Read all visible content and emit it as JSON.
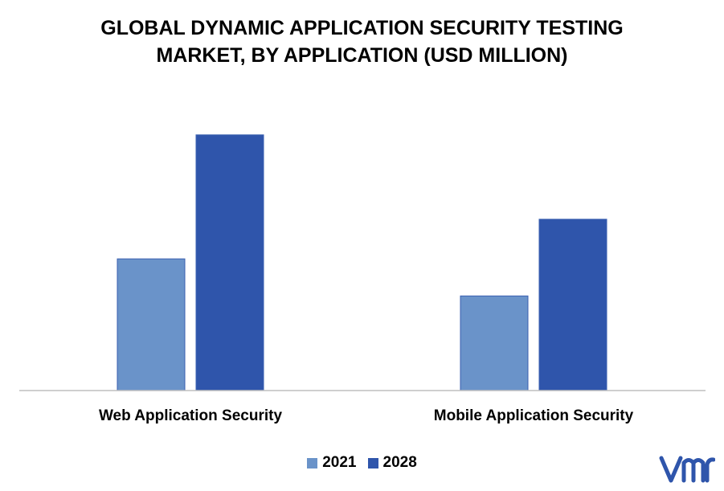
{
  "chart_data": {
    "type": "bar",
    "title_lines": [
      "GLOBAL DYNAMIC APPLICATION SECURITY TESTING",
      "MARKET, BY APPLICATION (USD MILLION)"
    ],
    "categories": [
      "Web Application Security",
      "Mobile Application Security"
    ],
    "series": [
      {
        "name": "2021",
        "values": [
          51.5,
          37
        ],
        "color": "#6a93c9"
      },
      {
        "name": "2028",
        "values": [
          100,
          67
        ],
        "color": "#2f55ab"
      }
    ],
    "ylim": [
      0,
      110
    ],
    "grid": false,
    "legend_position": "bottom"
  },
  "logo": {
    "icon": "vmr-logo-icon",
    "color": "#2f55ab"
  }
}
